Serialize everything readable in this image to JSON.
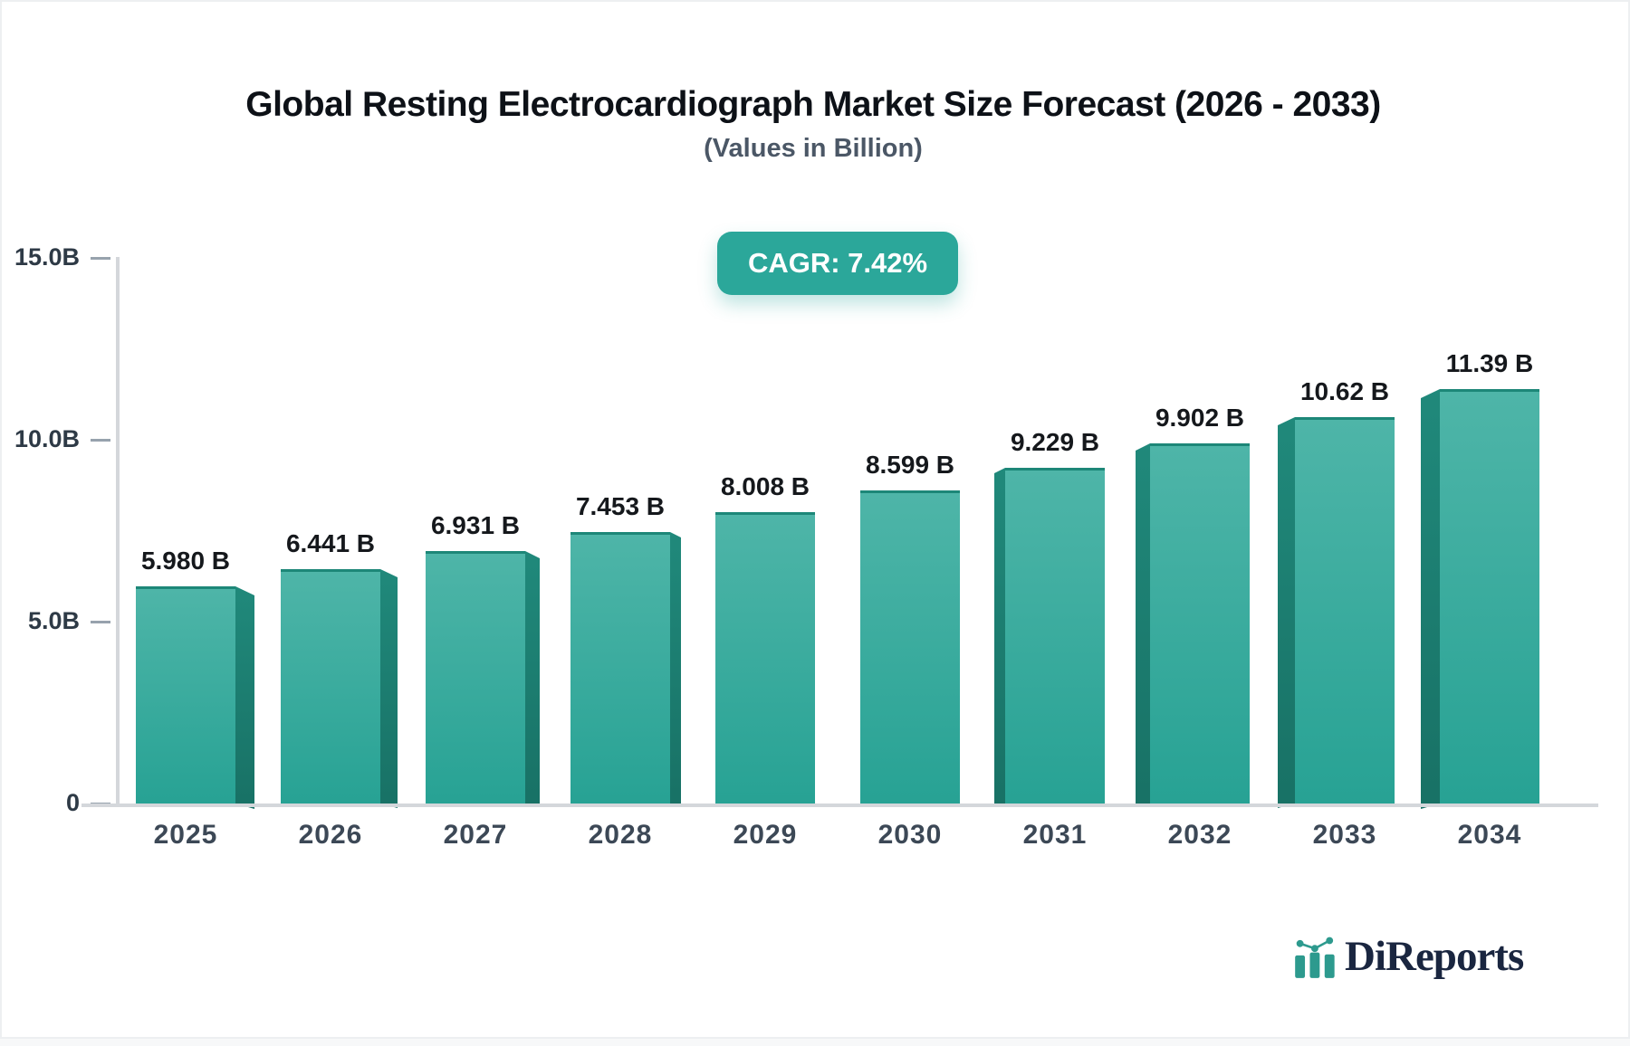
{
  "header": {
    "title": "Global Resting Electrocardiograph Market Size Forecast (2026 - 2033)",
    "subtitle": "(Values in Billion)",
    "cagr_badge": "CAGR: 7.42%"
  },
  "chart_data": {
    "type": "bar",
    "title": "Global Resting Electrocardiograph Market Size Forecast (2026 - 2033)",
    "subtitle": "(Values in Billion)",
    "annotations": [
      "CAGR: 7.42%"
    ],
    "categories": [
      "2025",
      "2026",
      "2027",
      "2028",
      "2029",
      "2030",
      "2031",
      "2032",
      "2033",
      "2034"
    ],
    "values": [
      5.98,
      6.441,
      6.931,
      7.453,
      8.008,
      8.599,
      9.229,
      9.902,
      10.62,
      11.39
    ],
    "value_labels": [
      "5.980 B",
      "6.441 B",
      "6.931 B",
      "7.453 B",
      "8.008 B",
      "8.599 B",
      "9.229 B",
      "9.902 B",
      "10.62 B",
      "11.39 B"
    ],
    "xlabel": "",
    "ylabel": "",
    "ylim": [
      0,
      15
    ],
    "y_ticks": [
      {
        "value": 0,
        "label": "0"
      },
      {
        "value": 5,
        "label": "5.0B"
      },
      {
        "value": 10,
        "label": "10.0B"
      },
      {
        "value": 15,
        "label": "15.0B"
      }
    ],
    "grid": false,
    "legend": false,
    "colors": {
      "accent": "#2ba79a",
      "bar_gradient_top": "#4eb5a8",
      "bar_gradient_bottom": "#27a294",
      "bar_top_edge": "#1d8778",
      "bar_side_top": "#20897b",
      "bar_side_bottom": "#187165",
      "axis_line": "#d4d7db",
      "tick_text": "#2e3a46"
    }
  },
  "footer": {
    "logo_text": "DiReports"
  }
}
